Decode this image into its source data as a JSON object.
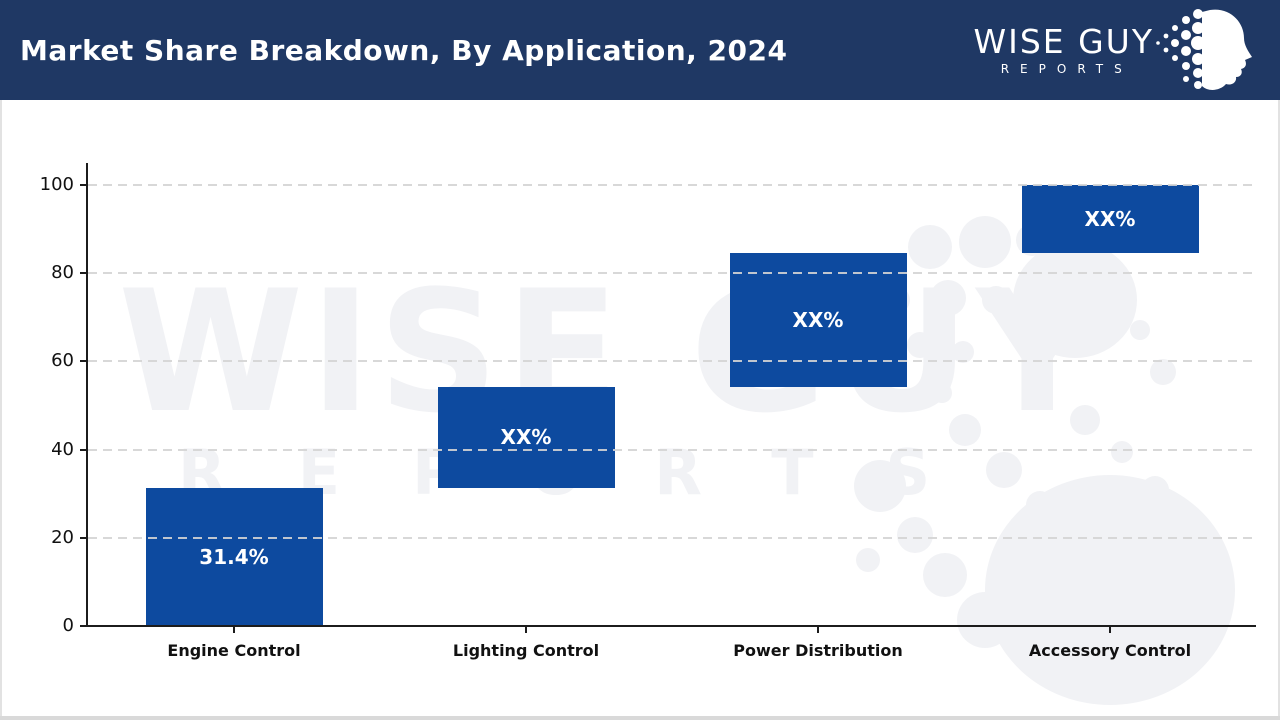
{
  "header": {
    "title": "Market Share Breakdown, By Application, 2024",
    "logo_line1": "WISE GUY",
    "logo_line2": "REPORTS",
    "bg_color": "#1f3864"
  },
  "watermark": {
    "line1": "WISE GUY",
    "line2": "REPORTS"
  },
  "chart_data": {
    "type": "bar",
    "subtype": "waterfall",
    "title": "Market Share Breakdown, By Application, 2024",
    "xlabel": "",
    "ylabel": "",
    "categories": [
      "Engine Control",
      "Lighting Control",
      "Power Distribution",
      "Accessory Control"
    ],
    "segments": [
      {
        "category": "Engine Control",
        "start": 0,
        "end": 31.4,
        "label": "31.4%"
      },
      {
        "category": "Lighting Control",
        "start": 31.4,
        "end": 54.2,
        "label": "XX%"
      },
      {
        "category": "Power Distribution",
        "start": 54.2,
        "end": 84.6,
        "label": "XX%"
      },
      {
        "category": "Accessory Control",
        "start": 84.6,
        "end": 100,
        "label": "XX%"
      }
    ],
    "ylim": [
      0,
      100
    ],
    "yticks": [
      0,
      20,
      40,
      60,
      80,
      100
    ],
    "grid": "horizontal-dashed",
    "legend": "none",
    "bar_color": "#0d4a9f",
    "bar_label_color": "#ffffff",
    "axis_color": "#1c1c1c"
  }
}
